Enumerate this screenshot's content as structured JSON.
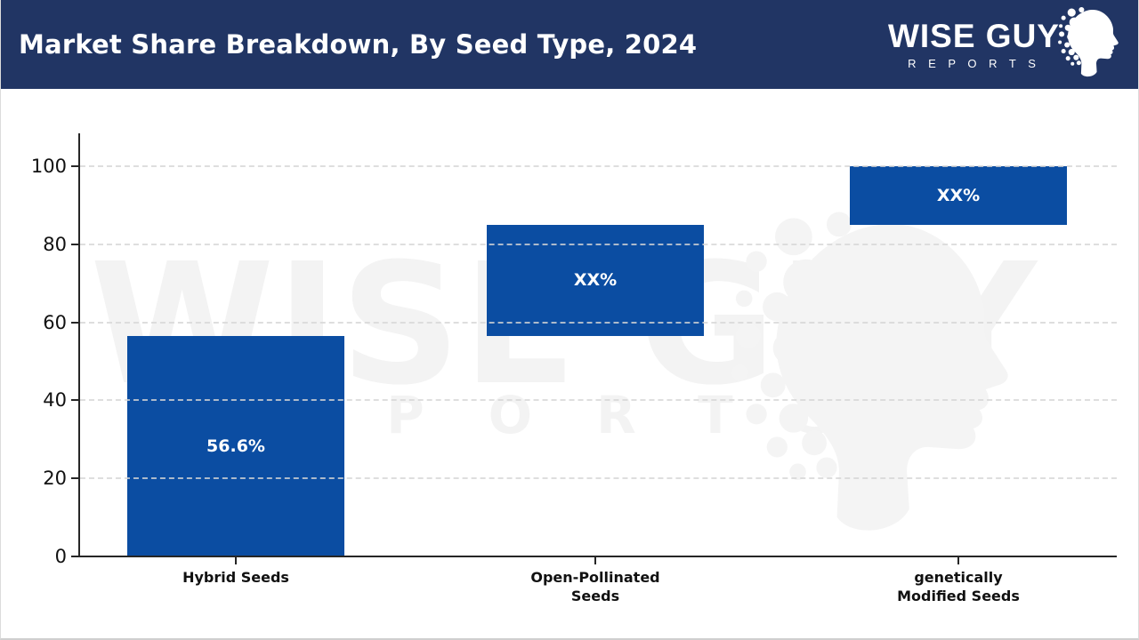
{
  "header": {
    "title": "Market Share Breakdown, By Seed Type, 2024",
    "brand": {
      "name": "WISE GUY",
      "tagline": "R E P O R T S"
    }
  },
  "watermark": {
    "line1": "WISE GUY",
    "line2": "REPORTS"
  },
  "chart_data": {
    "type": "bar",
    "subtype": "waterfall-breakdown",
    "title": "Market Share Breakdown, By Seed Type, 2024",
    "categories": [
      "Hybrid Seeds",
      "Open-Pollinated\nSeeds",
      "genetically\nModified Seeds"
    ],
    "segments": [
      {
        "category": "Hybrid Seeds",
        "start": 0,
        "end": 56.6,
        "label": "56.6%"
      },
      {
        "category": "Open-Pollinated Seeds",
        "start": 56.6,
        "end": 85,
        "label": "XX%"
      },
      {
        "category": "genetically Modified Seeds",
        "start": 85,
        "end": 100,
        "label": "XX%"
      }
    ],
    "yticks": [
      0,
      20,
      40,
      60,
      80,
      100
    ],
    "ylim": [
      0,
      100
    ],
    "xlabel": "",
    "ylabel": "",
    "grid": "dashed horizontal gridlines",
    "legend": "none",
    "bar_color": "#0b4da2",
    "bar_label_color": "#ffffff"
  },
  "colors": {
    "header_bg": "#213564",
    "bar": "#0b4da2",
    "axis": "#262626",
    "gridline": "#d6d6d6",
    "watermark": "#f3f3f3"
  }
}
